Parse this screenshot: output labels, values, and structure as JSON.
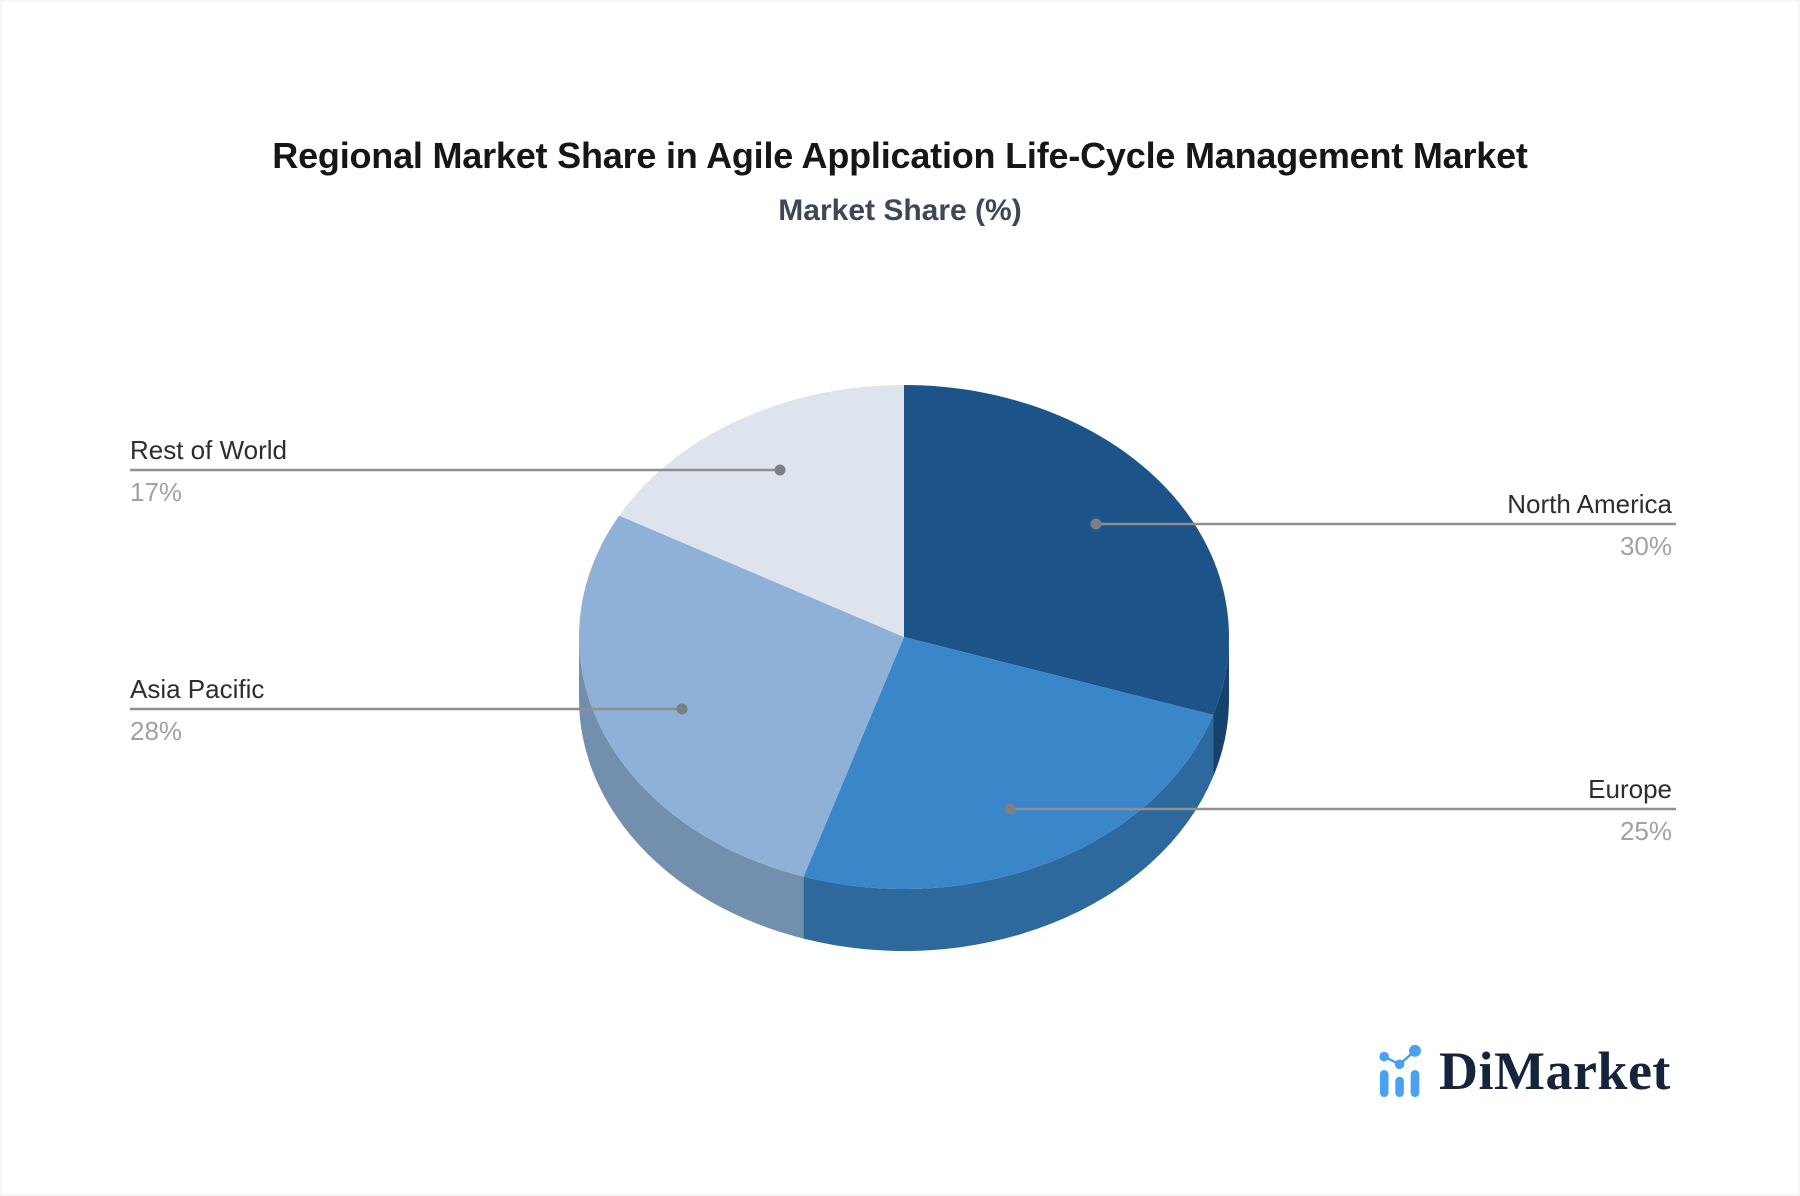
{
  "chart_data": {
    "type": "pie",
    "effect": "3d",
    "title": "Regional Market Share in Agile Application Life-Cycle Management Market",
    "subtitle": "Market Share (%)",
    "unit": "%",
    "legend_position": "none",
    "categories": [
      "North America",
      "Europe",
      "Asia Pacific",
      "Rest of World"
    ],
    "values": [
      30,
      25,
      28,
      17
    ],
    "series": [
      {
        "name": "North America",
        "value": 30,
        "pct_label": "30%",
        "color": "#1c5489",
        "side_color": "#16426b"
      },
      {
        "name": "Europe",
        "value": 25,
        "pct_label": "25%",
        "color": "#3a86c8",
        "side_color": "#2d699d"
      },
      {
        "name": "Asia Pacific",
        "value": 28,
        "pct_label": "28%",
        "color": "#8fb1d8",
        "side_color": "#7290ae"
      },
      {
        "name": "Rest of World",
        "value": 17,
        "pct_label": "17%",
        "color": "#dde4ee",
        "side_color": "#b3bfd1"
      }
    ],
    "colors": {
      "title": "#161616",
      "subtitle": "#3d4757",
      "label_name": "#2e2e2e",
      "label_pct": "#9ea3a9",
      "leader_line": "#8f8f8f",
      "leader_dot": "#7b7f86"
    }
  },
  "logo": {
    "text": "DiMarket",
    "icon": "bar-chart-trend-icon",
    "icon_color": "#4aa0f2",
    "text_color": "#16233d"
  }
}
